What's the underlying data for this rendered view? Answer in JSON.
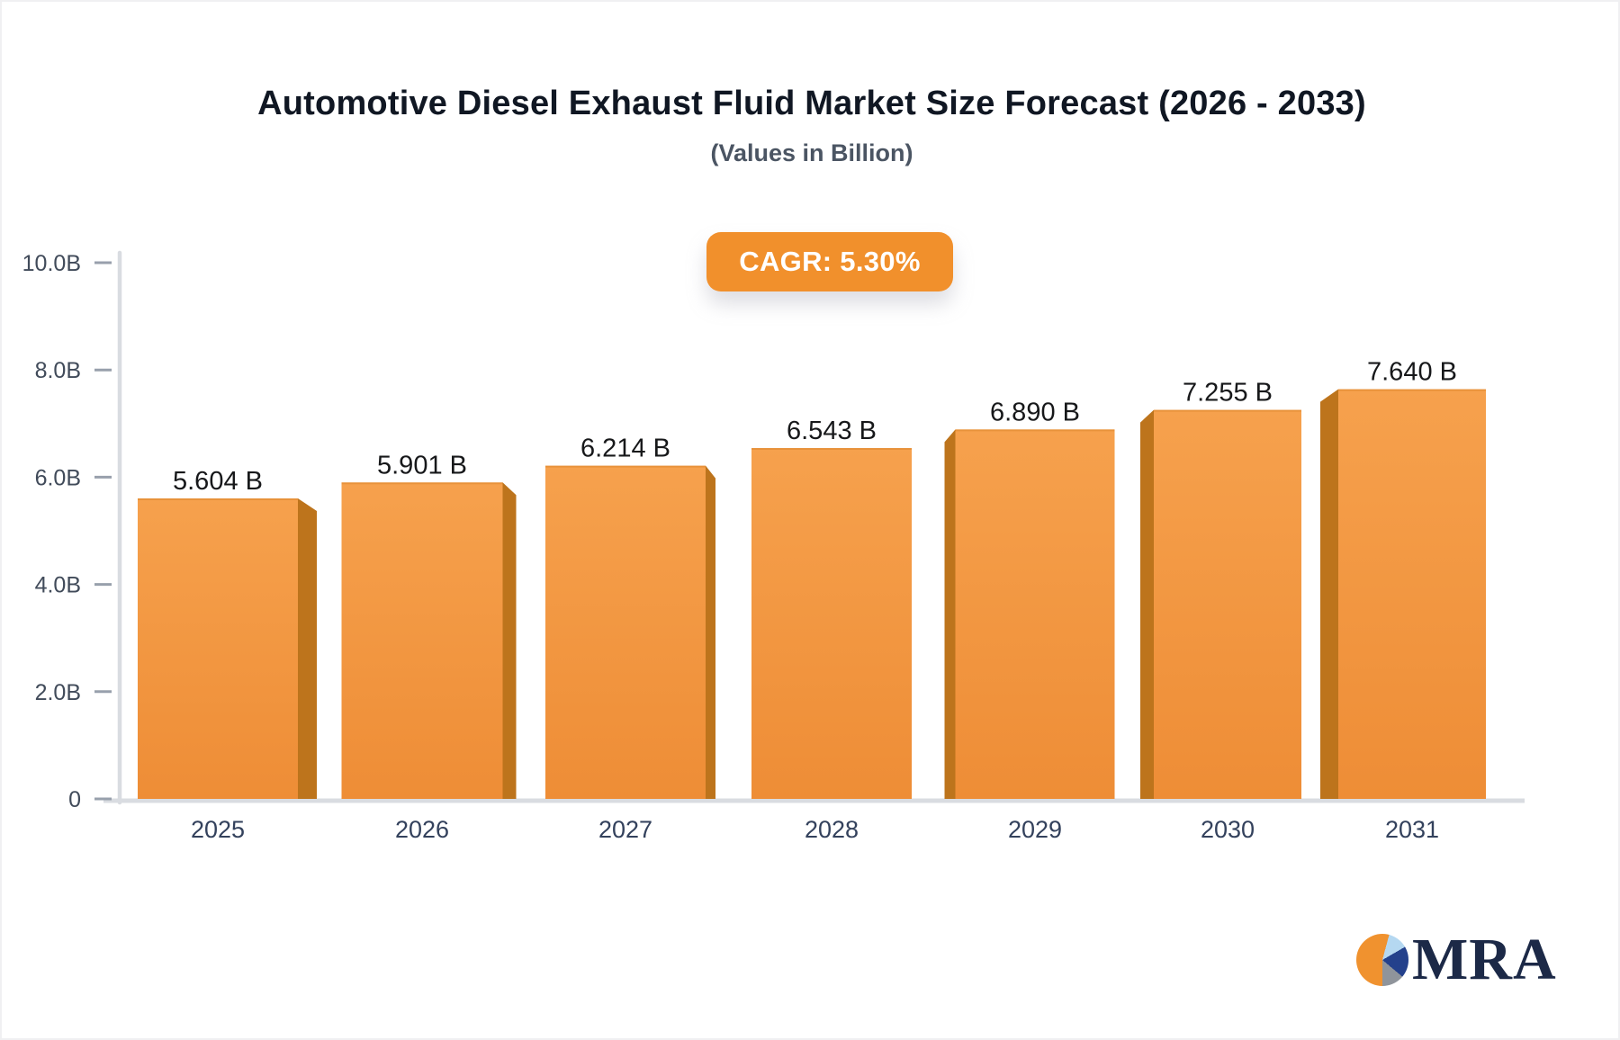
{
  "header": {
    "title": "Automotive Diesel Exhaust Fluid Market Size Forecast (2026 - 2033)",
    "subtitle": "(Values in Billion)"
  },
  "cagr": {
    "label": "CAGR: 5.30%"
  },
  "chart_data": {
    "type": "bar",
    "title": "Automotive Diesel Exhaust Fluid Market Size Forecast (2026 - 2033)",
    "subtitle": "(Values in Billion)",
    "unit": "Billion",
    "cagr_label": "CAGR: 5.30%",
    "categories": [
      "2025",
      "2026",
      "2027",
      "2028",
      "2029",
      "2030",
      "2031"
    ],
    "values": [
      5.604,
      5.901,
      6.214,
      6.543,
      6.89,
      7.255,
      7.64
    ],
    "value_labels": [
      "5.604 B",
      "5.901 B",
      "6.214 B",
      "6.543 B",
      "6.890 B",
      "7.255 B",
      "7.640 B"
    ],
    "ylim": [
      0,
      10
    ],
    "ytick_values": [
      0,
      2,
      4,
      6,
      8,
      10
    ],
    "ytick_labels": [
      "0",
      "2.0B",
      "4.0B",
      "6.0B",
      "8.0B",
      "10.0B"
    ],
    "grid": "off",
    "legend": "none",
    "colors": {
      "bar_face_top": "#f6a14d",
      "bar_face_bottom": "#ee8d36",
      "bar_face_edge": "#e0892f",
      "bar_side": "#bd741c",
      "axis_line": "#d9dce1",
      "tick": "#98a0ac",
      "badge": "#f1902c"
    }
  },
  "logo": {
    "text": "MRA"
  }
}
